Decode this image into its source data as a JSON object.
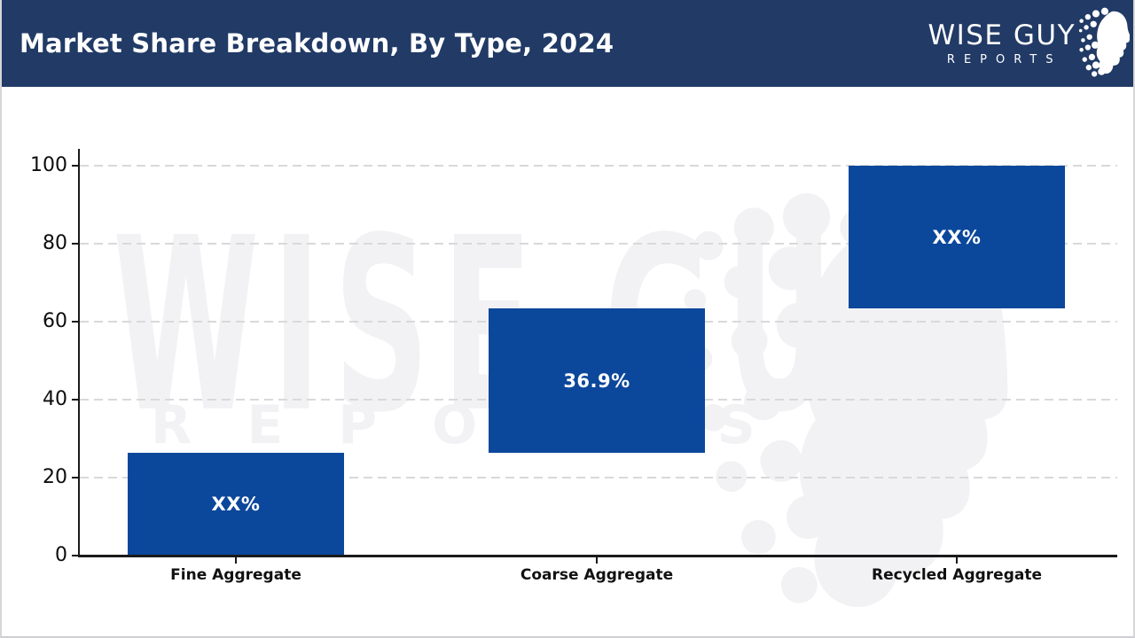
{
  "header": {
    "title": "Market Share Breakdown, By Type, 2024",
    "logo": {
      "line1": "WISE GUY",
      "line2": "REPORTS"
    }
  },
  "watermark": {
    "line1": "WISE GUY",
    "line2": "REPORTS"
  },
  "colors": {
    "header_bg": "#213a66",
    "bar": "#0b479b",
    "grid": "#d9d9d9",
    "axis": "#1a1a1a",
    "watermark": "#f2f2f5",
    "title_text": "#ffffff",
    "bar_label_text": "#ffffff"
  },
  "chart_data": {
    "type": "bar",
    "subtype": "stacked_waterfall_segments",
    "title": "Market Share Breakdown, By Type, 2024",
    "categories": [
      "Fine Aggregate",
      "Coarse Aggregate",
      "Recycled Aggregate"
    ],
    "segments": [
      {
        "category": "Fine Aggregate",
        "start": 0,
        "end": 26.4,
        "value": 26.4,
        "value_label": "XX%"
      },
      {
        "category": "Coarse Aggregate",
        "start": 26.4,
        "end": 63.3,
        "value": 36.9,
        "value_label": "36.9%"
      },
      {
        "category": "Recycled Aggregate",
        "start": 63.3,
        "end": 100,
        "value": 36.7,
        "value_label": "XX%"
      }
    ],
    "xlabel": "",
    "ylabel": "",
    "ylim": [
      0,
      104
    ],
    "yticks": [
      0,
      20,
      40,
      60,
      80,
      100
    ],
    "grid": "horizontal_dashed",
    "legend": "none"
  }
}
